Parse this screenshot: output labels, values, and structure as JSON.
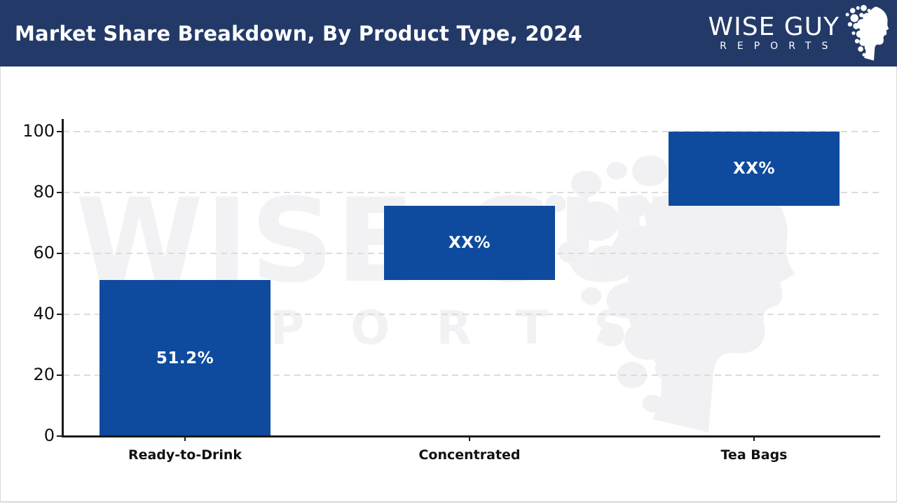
{
  "header": {
    "title": "Market Share Breakdown, By Product Type, 2024",
    "background_color": "#233a68",
    "brand": {
      "line1": "WISE GUY",
      "line2": "REPORTS"
    }
  },
  "watermark": {
    "line1": "WISE GUY",
    "line2": "REPORTS"
  },
  "chart_data": {
    "type": "bar",
    "subtype": "floating-segment-waterfall",
    "title": "Market Share Breakdown, By Product Type, 2024",
    "categories": [
      "Ready-to-Drink",
      "Concentrated",
      "Tea Bags"
    ],
    "segments": [
      {
        "category": "Ready-to-Drink",
        "start": 0,
        "end": 51.2,
        "label": "51.2%"
      },
      {
        "category": "Concentrated",
        "start": 51.2,
        "end": 75.6,
        "label": "XX%"
      },
      {
        "category": "Tea Bags",
        "start": 75.6,
        "end": 100,
        "label": "XX%"
      }
    ],
    "bar_color": "#0E4B9E",
    "label_color": "#ffffff",
    "ylim": [
      0,
      100
    ],
    "yticks": [
      0,
      20,
      40,
      60,
      80,
      100
    ],
    "xlabel": "",
    "ylabel": "",
    "grid": "horizontal-dashed",
    "grid_color": "#dcdcdc",
    "legend": null
  }
}
